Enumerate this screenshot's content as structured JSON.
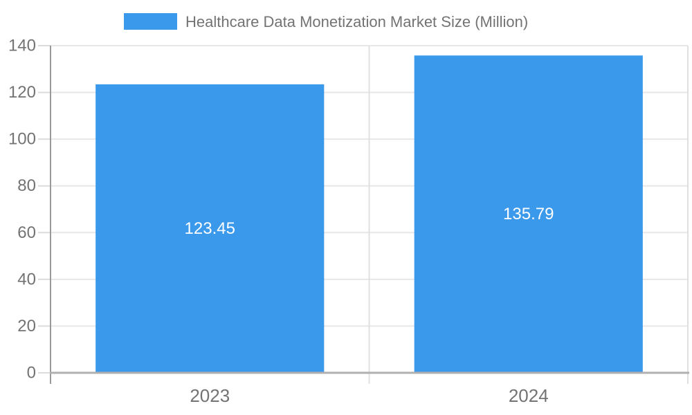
{
  "chart_data": {
    "type": "bar",
    "title": "Healthcare Data Monetization Market Size (Million)",
    "categories": [
      "2023",
      "2024"
    ],
    "values": [
      123.45,
      135.79
    ],
    "value_labels": [
      "123.45",
      "135.79"
    ],
    "xlabel": "",
    "ylabel": "",
    "ylim": [
      0,
      140
    ],
    "yticks": [
      0,
      20,
      40,
      60,
      80,
      100,
      120,
      140
    ],
    "grid": true,
    "legend_position": "top-center",
    "value_label_position": "inside-center",
    "colors": {
      "bar": "#3b99ec",
      "text": "#737373",
      "grid_line": "#e7e7e7",
      "boundary_line": "#e0e0e0",
      "tick_line": "#dcdcdc",
      "y_axis_line": "#999999",
      "x_axis_line": "#b0b0b0",
      "value_label": "#ffffff",
      "background": "#ffffff"
    }
  }
}
